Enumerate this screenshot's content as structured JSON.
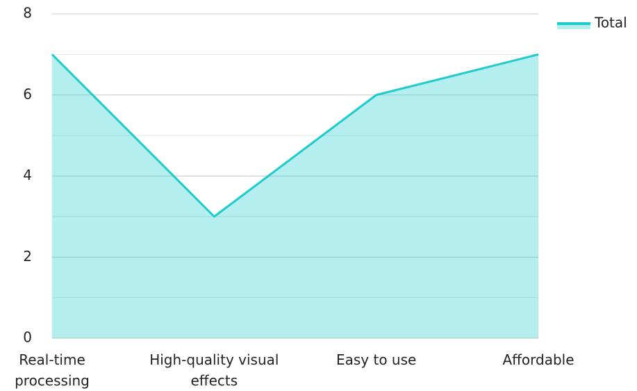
{
  "chart_data": {
    "type": "area",
    "categories": [
      "Real-time processing",
      "High-quality visual effects",
      "Easy to use",
      "Affordable"
    ],
    "series": [
      {
        "name": "Total",
        "color": "#1ccccc",
        "values": [
          7,
          3,
          6,
          7
        ]
      }
    ],
    "ylim": [
      0,
      8
    ],
    "yticks": [
      0,
      2,
      4,
      6,
      8
    ],
    "grid": true,
    "legend": "top-right"
  }
}
